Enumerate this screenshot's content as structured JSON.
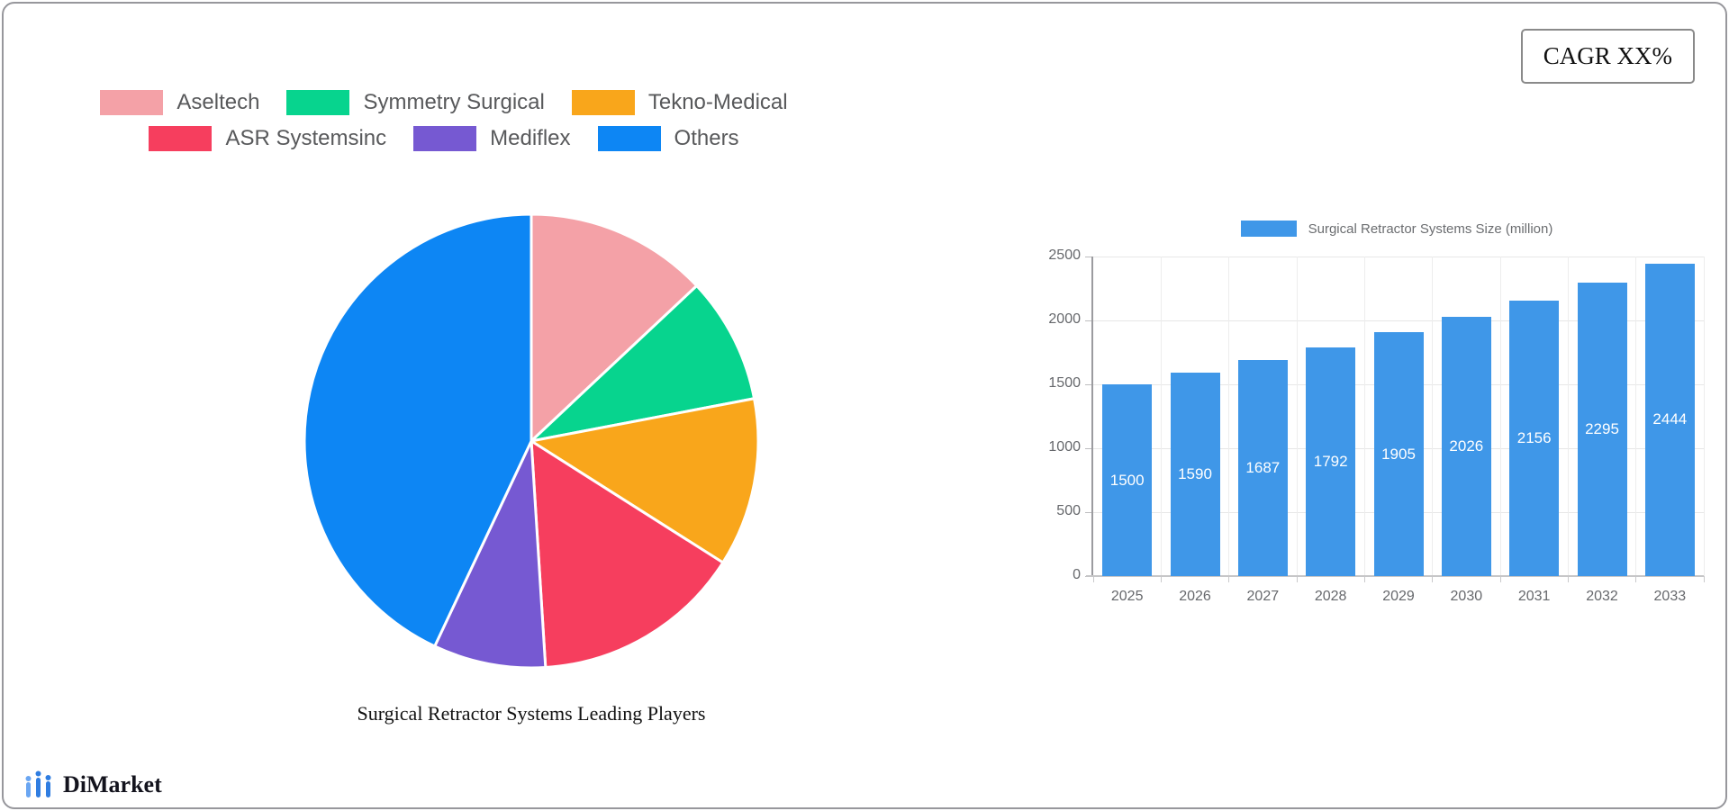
{
  "cagr": {
    "label": "CAGR XX%"
  },
  "watermark": {
    "brand": "DiMarket"
  },
  "chart_data": [
    {
      "type": "pie",
      "title": "Surgical Retractor Systems Leading Players",
      "labels": [
        "Aseltech",
        "Symmetry Surgical",
        "Tekno-Medical",
        "ASR Systemsinc",
        "Mediflex",
        "Others"
      ],
      "values": [
        13,
        9,
        12,
        15,
        8,
        43
      ],
      "colors": [
        "#F4A1A7",
        "#07D48E",
        "#F9A61B",
        "#F63E5E",
        "#7659D2",
        "#0D86F4"
      ],
      "legend_position": "top",
      "legend_rows": [
        [
          0,
          1,
          2
        ],
        [
          3,
          4,
          5
        ]
      ],
      "slice_border_color": "#ffffff",
      "start_angle_deg": 0,
      "direction": "clockwise"
    },
    {
      "type": "bar",
      "legend": "Surgical Retractor Systems Size (million)",
      "categories": [
        "2025",
        "2026",
        "2027",
        "2028",
        "2029",
        "2030",
        "2031",
        "2032",
        "2033"
      ],
      "values": [
        1500,
        1590,
        1687,
        1792,
        1905,
        2026,
        2156,
        2295,
        2444
      ],
      "bar_color": "#3F97E8",
      "value_label_color": "#ffffff",
      "ylim": [
        0,
        2500
      ],
      "ytick_step": 500,
      "grid": true,
      "legend_position": "top"
    }
  ]
}
